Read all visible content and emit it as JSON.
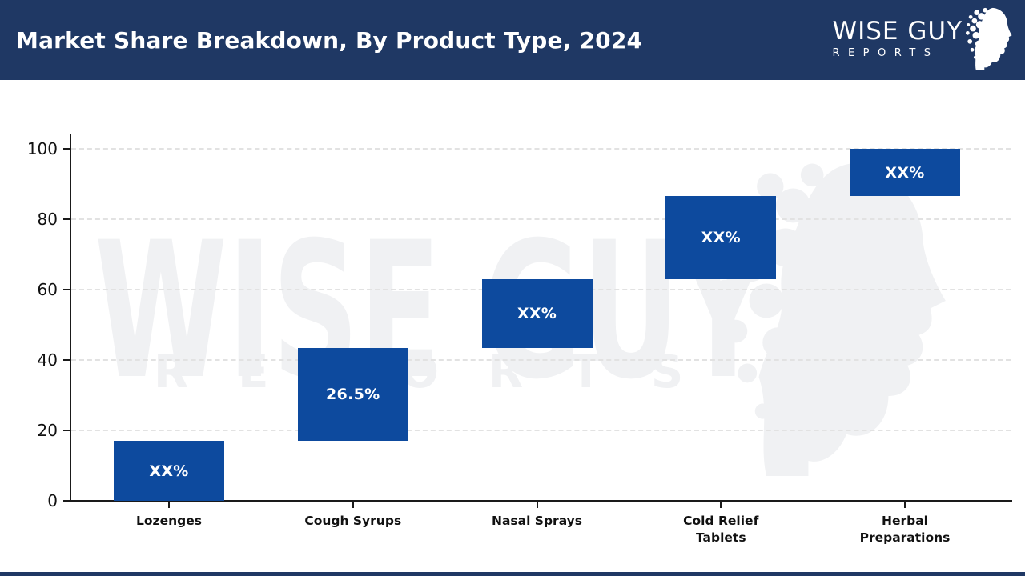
{
  "header": {
    "title": "Market Share Breakdown, By Product Type, 2024",
    "logo": {
      "brand_line1": "WISE GUY",
      "brand_line2": "REPORTS"
    }
  },
  "watermark": {
    "line1": "WISE GUY",
    "line2": "REPORTS"
  },
  "colors": {
    "header_bg": "#1f3864",
    "bar_fill": "#0d4a9e",
    "bar_label_text": "#ffffff",
    "axis": "#1a1a1a",
    "gridline": "#e2e2e2",
    "watermark": "#f0f1f3"
  },
  "chart_data": {
    "type": "bar",
    "subtype": "floating_segment_waterfall",
    "title": "Market Share Breakdown, By Product Type, 2024",
    "xlabel": "",
    "ylabel": "",
    "ylim": [
      0,
      100
    ],
    "yticks": [
      0,
      20,
      40,
      60,
      80,
      100
    ],
    "grid": "horizontal-dashed",
    "legend": "none",
    "categories": [
      "Lozenges",
      "Cough Syrups",
      "Nasal Sprays",
      "Cold Relief Tablets",
      "Herbal Preparations"
    ],
    "xtick_label_lines": [
      [
        "Lozenges"
      ],
      [
        "Cough Syrups"
      ],
      [
        "Nasal Sprays"
      ],
      [
        "Cold Relief",
        "Tablets"
      ],
      [
        "Herbal",
        "Preparations"
      ]
    ],
    "series": [
      {
        "name": "Market share segments",
        "segments": [
          {
            "category": "Lozenges",
            "from": 0,
            "to": 17,
            "label": "XX%"
          },
          {
            "category": "Cough Syrups",
            "from": 17,
            "to": 43.5,
            "label": "26.5%"
          },
          {
            "category": "Nasal Sprays",
            "from": 43.5,
            "to": 63,
            "label": "XX%"
          },
          {
            "category": "Cold Relief Tablets",
            "from": 63,
            "to": 86.5,
            "label": "XX%"
          },
          {
            "category": "Herbal Preparations",
            "from": 86.5,
            "to": 100,
            "label": "XX%"
          }
        ]
      }
    ]
  }
}
